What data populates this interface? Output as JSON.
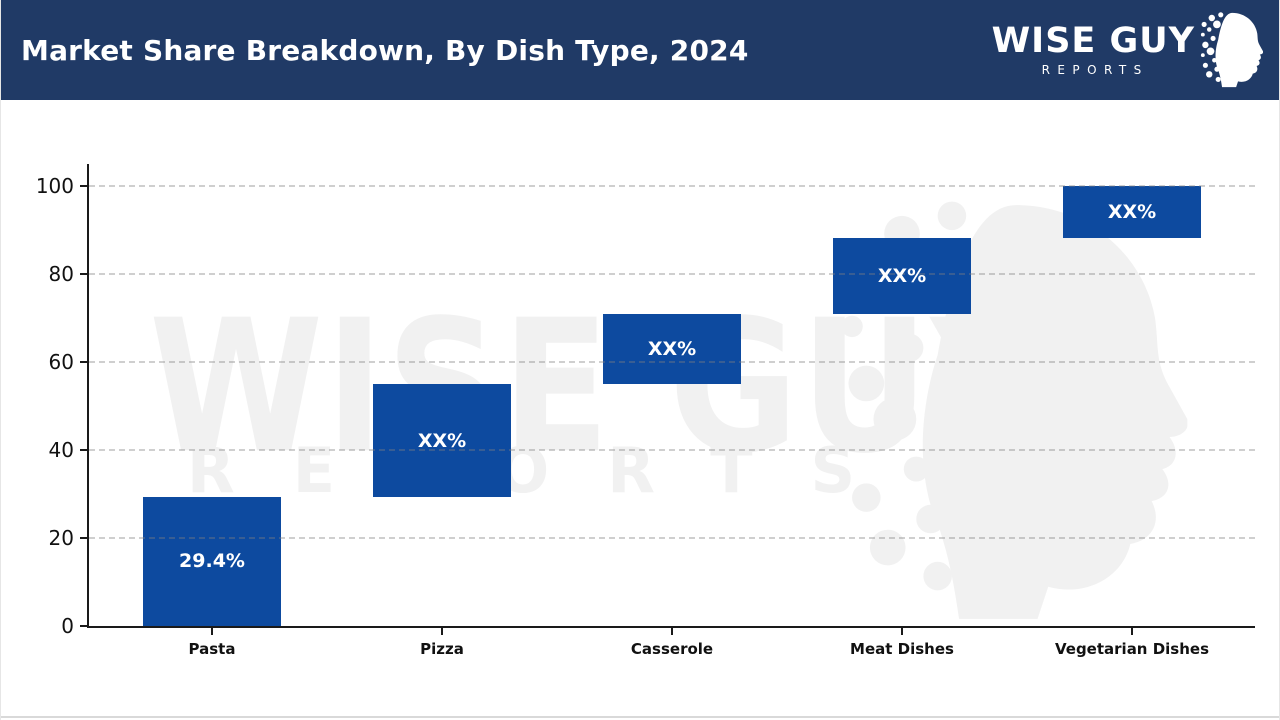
{
  "header": {
    "title": "Market Share Breakdown, By Dish Type, 2024",
    "logo": {
      "wordmark": "WISE GUY",
      "subtitle": "REPORTS"
    }
  },
  "watermark": {
    "wordmark": "WISE GUY",
    "subtitle": "REPORTS"
  },
  "chart_data": {
    "type": "bar",
    "subtype": "waterfall-stacked-percentage",
    "title": "Market Share Breakdown, By Dish Type, 2024",
    "categories": [
      "Pasta",
      "Pizza",
      "Casserole",
      "Meat Dishes",
      "Vegetarian Dishes"
    ],
    "segments": [
      {
        "category": "Pasta",
        "start": 0,
        "end": 29.4,
        "label": "29.4%"
      },
      {
        "category": "Pizza",
        "start": 29.4,
        "end": 54.9,
        "label": "XX%"
      },
      {
        "category": "Casserole",
        "start": 55.0,
        "end": 70.8,
        "label": "XX%"
      },
      {
        "category": "Meat Dishes",
        "start": 70.8,
        "end": 88.1,
        "label": "XX%"
      },
      {
        "category": "Vegetarian Dishes",
        "start": 88.1,
        "end": 100.0,
        "label": "XX%"
      }
    ],
    "yticks": [
      0,
      20,
      40,
      60,
      80,
      100
    ],
    "ylim": [
      0,
      105
    ],
    "xlabel": "",
    "ylabel": "",
    "grid": "horizontal-dashed",
    "legend": "none",
    "bar_color": "#0d4a9f",
    "bar_label_color": "#ffffff",
    "axis_color": "#1a1a1a",
    "grid_color": "rgba(130,130,130,0.38)"
  },
  "colors": {
    "header_bg": "#203a66",
    "header_text": "#ffffff",
    "watermark": "#f1f1f1",
    "page_bg": "#ffffff"
  }
}
